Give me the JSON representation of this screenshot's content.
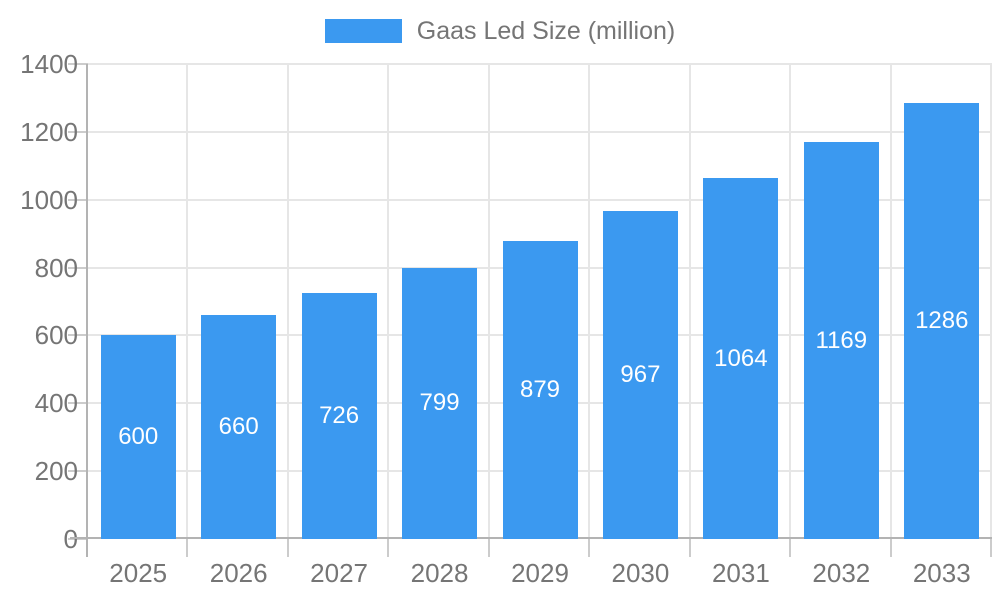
{
  "chart_data": {
    "type": "bar",
    "title": "",
    "legend": "Gaas Led Size (million)",
    "legend_position": "top-center",
    "categories": [
      "2025",
      "2026",
      "2027",
      "2028",
      "2029",
      "2030",
      "2031",
      "2032",
      "2033"
    ],
    "values": [
      600,
      660,
      726,
      799,
      879,
      967,
      1064,
      1169,
      1286
    ],
    "xlabel": "",
    "ylabel": "",
    "ylim": [
      0,
      1400
    ],
    "yticks": [
      0,
      200,
      400,
      600,
      800,
      1000,
      1200,
      1400
    ],
    "grid": true,
    "bar_label_position": "inside-center",
    "colors": {
      "bar": "#3B99F0",
      "bar_label": "#FFFFFF",
      "axis_label": "#757575",
      "legend_text": "#757575",
      "gridline": "#E6E6E6",
      "tick": "#CCCCCC",
      "axis_line": "#B3B3B3",
      "background": "#FFFFFF"
    }
  }
}
